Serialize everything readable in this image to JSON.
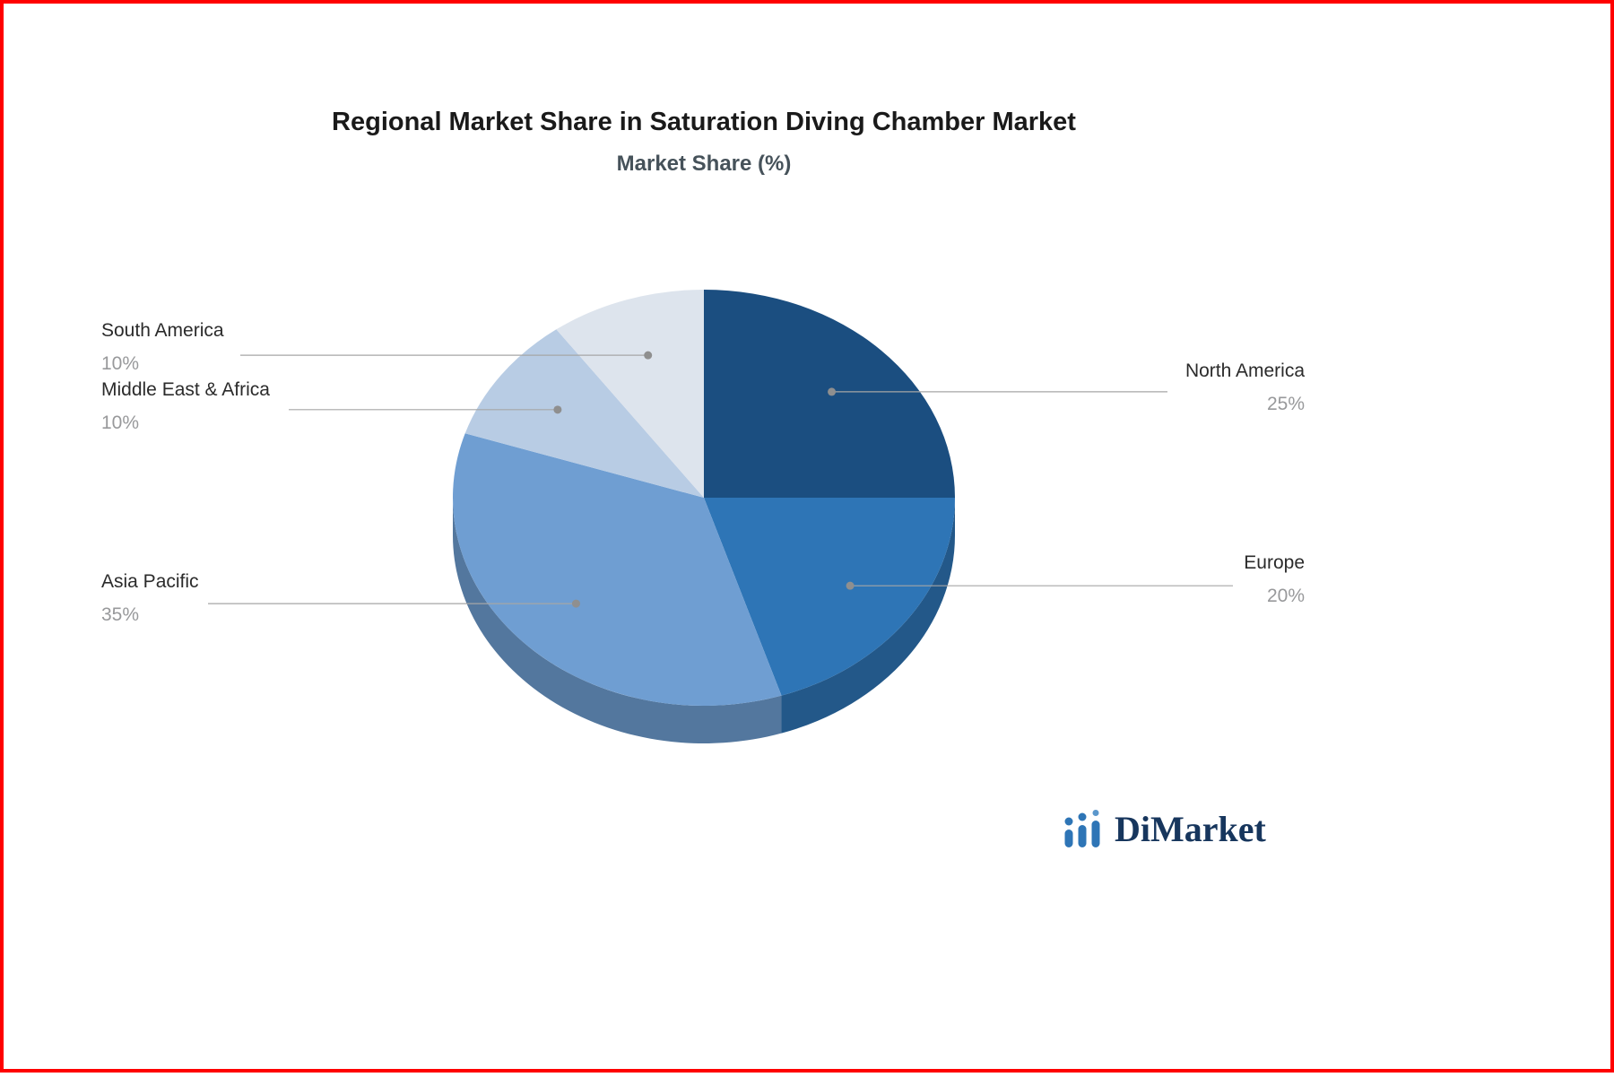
{
  "header": {
    "title": "Regional Market Share in Saturation Diving Chamber Market",
    "subtitle": "Market Share (%)"
  },
  "chart_data": {
    "type": "pie",
    "style": "3d-extruded",
    "title": "Regional Market Share in Saturation Diving Chamber Market",
    "subtitle": "Market Share (%)",
    "unit": "%",
    "start_angle_deg": 0,
    "direction": "clockwise",
    "legend_position": "callout-labels",
    "slices": [
      {
        "label": "North America",
        "value": 25,
        "display_value": "25%",
        "color": "#1b4e80"
      },
      {
        "label": "Europe",
        "value": 20,
        "display_value": "20%",
        "color": "#2e75b6"
      },
      {
        "label": "Asia Pacific",
        "value": 35,
        "display_value": "35%",
        "color": "#6f9ed2"
      },
      {
        "label": "Middle East & Africa",
        "value": 10,
        "display_value": "10%",
        "color": "#b8cce4"
      },
      {
        "label": "South America",
        "value": 10,
        "display_value": "10%",
        "color": "#dde4ed"
      }
    ],
    "callout_line_color": "#a6a6a6",
    "callout_dot_color": "#8f8f8f"
  },
  "branding": {
    "name": "DiMarket",
    "icon": "bar-chart-logo-icon",
    "icon_color": "#2e75b6",
    "text_color": "#17365d"
  }
}
